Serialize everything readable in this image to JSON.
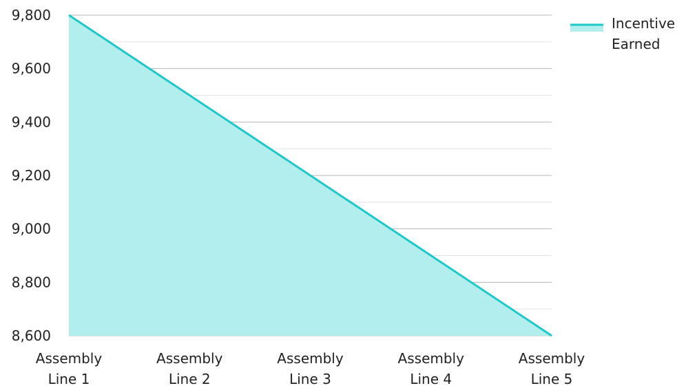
{
  "chart_data": {
    "type": "area",
    "categories": [
      "Assembly Line 1",
      "Assembly Line 2",
      "Assembly Line 3",
      "Assembly Line 4",
      "Assembly Line 5"
    ],
    "category_lines": [
      [
        "Assembly",
        "Line 1"
      ],
      [
        "Assembly",
        "Line 2"
      ],
      [
        "Assembly",
        "Line 3"
      ],
      [
        "Assembly",
        "Line 4"
      ],
      [
        "Assembly",
        "Line 5"
      ]
    ],
    "series": [
      {
        "name": "Incentive Earned",
        "name_lines": [
          "Incentive",
          "Earned"
        ],
        "values": [
          9800,
          9500,
          9200,
          8900,
          8600
        ]
      }
    ],
    "ylim": [
      8600,
      9800
    ],
    "y_ticks": [
      8600,
      8800,
      9000,
      9200,
      9400,
      9600,
      9800
    ],
    "y_tick_labels": [
      "8,600",
      "8,800",
      "9,000",
      "9,200",
      "9,400",
      "9,600",
      "9,800"
    ],
    "y_minor_step": 100,
    "grid": true,
    "legend_position": "top-right",
    "colors": {
      "line": "#1ec8c8",
      "fill": "#b2eeee",
      "grid_major": "#b4b4b4",
      "grid_minor": "#e2e2e2"
    }
  }
}
